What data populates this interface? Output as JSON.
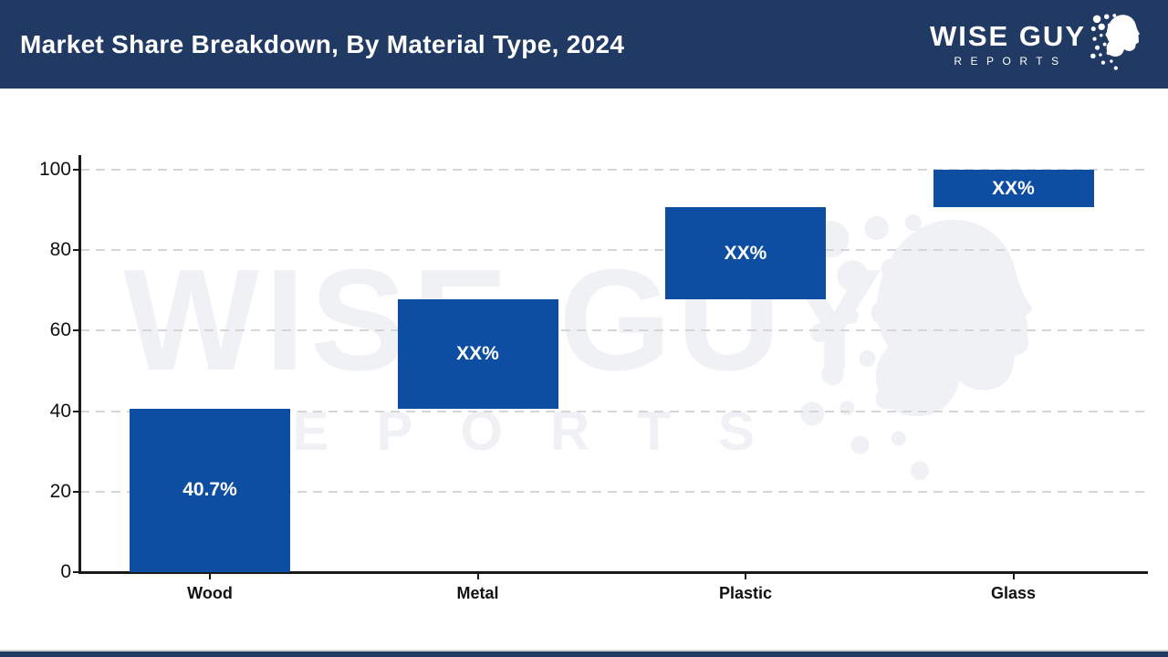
{
  "header": {
    "title": "Market Share Breakdown, By Material Type, 2024",
    "brand_line1": "WISE GUY",
    "brand_line2": "REPORTS"
  },
  "watermark": {
    "line1": "WISE GUY",
    "line2": "REPORTS"
  },
  "chart_data": {
    "type": "bar",
    "subtype": "floating-segment-waterfall",
    "title": "Market Share Breakdown, By Material Type, 2024",
    "categories": [
      "Wood",
      "Metal",
      "Plastic",
      "Glass"
    ],
    "segments": [
      {
        "category": "Wood",
        "start": 0,
        "end": 40.7,
        "label": "40.7%"
      },
      {
        "category": "Metal",
        "start": 40.7,
        "end": 67.7,
        "label": "XX%"
      },
      {
        "category": "Plastic",
        "start": 67.7,
        "end": 90.7,
        "label": "XX%"
      },
      {
        "category": "Glass",
        "start": 90.7,
        "end": 100,
        "label": "XX%"
      }
    ],
    "xlabel": "",
    "ylabel": "",
    "ylim": [
      0,
      100
    ],
    "yticks": [
      0,
      20,
      40,
      60,
      80,
      100
    ],
    "grid": "horizontal-dashed",
    "legend": "none",
    "bar_color": "#0d4da2",
    "bar_label_color": "#ffffff"
  },
  "colors": {
    "header_bg": "#213a64",
    "footer_bg": "#213a64",
    "bar": "#0d4da2",
    "axis": "#1a1a1a",
    "grid": "#d6d6d6",
    "watermark": "#f0f1f4",
    "page_bg": "#ffffff"
  }
}
